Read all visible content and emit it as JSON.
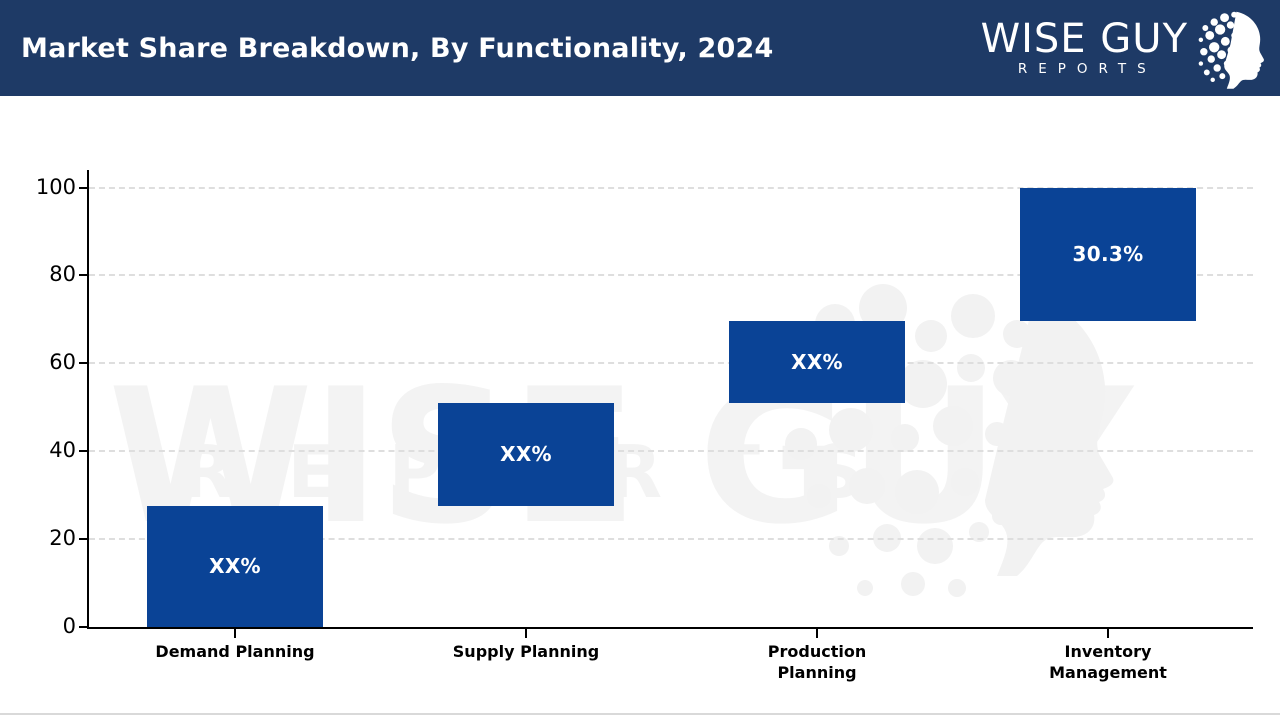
{
  "header": {
    "title": "Market Share Breakdown, By Functionality, 2024",
    "brand": {
      "line1": "WISE GUY",
      "line2": "REPORTS"
    }
  },
  "watermark": {
    "line1": "WISE GUY",
    "line2": "REPORTS"
  },
  "colors": {
    "header_bg": "#1e3a66",
    "bar": "#0a4396",
    "bar_label": "#ffffff",
    "grid": "#dedede",
    "axis": "#000000",
    "watermark": "#f3f3f3",
    "footer_line": "#d9d9d9"
  },
  "chart_data": {
    "type": "bar",
    "variant": "floating-waterfall",
    "title": "Market Share Breakdown, By Functionality, 2024",
    "categories": [
      "Demand Planning",
      "Supply Planning",
      "Production Planning",
      "Inventory Management"
    ],
    "category_label_lines": [
      [
        "Demand Planning"
      ],
      [
        "Supply Planning"
      ],
      [
        "Production",
        "Planning"
      ],
      [
        "Inventory",
        "Management"
      ]
    ],
    "segments": [
      {
        "category": "Demand Planning",
        "start": 0,
        "end": 27.6,
        "value": 27.6,
        "label": "XX%"
      },
      {
        "category": "Supply Planning",
        "start": 27.6,
        "end": 50.9,
        "value": 23.3,
        "label": "XX%"
      },
      {
        "category": "Production Planning",
        "start": 50.9,
        "end": 69.7,
        "value": 18.8,
        "label": "XX%"
      },
      {
        "category": "Inventory Management",
        "start": 69.7,
        "end": 100,
        "value": 30.3,
        "label": "30.3%"
      }
    ],
    "xlabel": "",
    "ylabel": "",
    "ylim": [
      0,
      100
    ],
    "yticks": [
      0,
      20,
      40,
      60,
      80,
      100
    ],
    "grid": "horizontal-dashed",
    "legend": "none",
    "bar_color": "#0a4396",
    "bar_label_color": "#ffffff"
  }
}
